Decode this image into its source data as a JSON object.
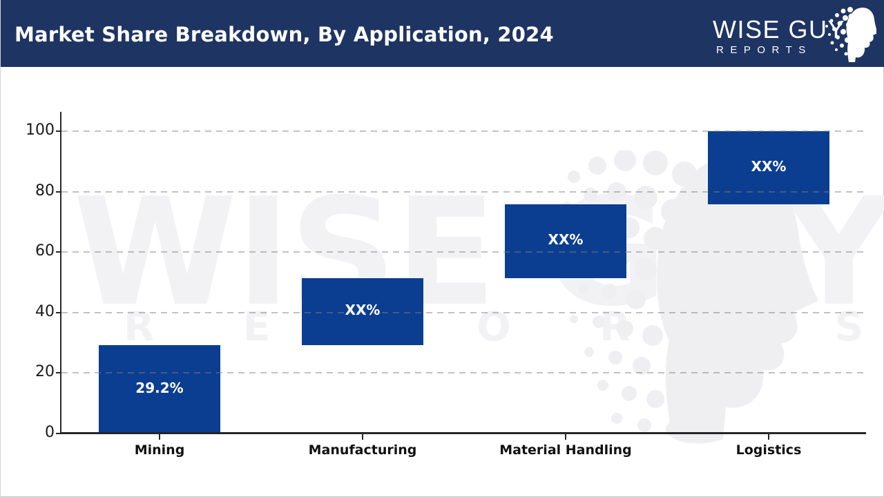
{
  "header": {
    "title": "Market Share Breakdown, By Application, 2024",
    "bg_color": "#1e3462",
    "logo": {
      "name": "WISE GUY",
      "sub": "REPORTS"
    }
  },
  "watermark": {
    "big": "WISE GUY",
    "sub": "R E P O R T S"
  },
  "chart_data": {
    "type": "bar",
    "variant": "waterfall",
    "title": "Market Share Breakdown, By Application, 2024",
    "categories": [
      "Mining",
      "Manufacturing",
      "Material Handling",
      "Logistics"
    ],
    "segments": [
      {
        "category": "Mining",
        "start": 0,
        "end": 29.2,
        "value_label": "29.2%"
      },
      {
        "category": "Manufacturing",
        "start": 29.2,
        "end": 51.4,
        "value_label": "XX%"
      },
      {
        "category": "Material Handling",
        "start": 51.4,
        "end": 75.9,
        "value_label": "XX%"
      },
      {
        "category": "Logistics",
        "start": 75.9,
        "end": 100,
        "value_label": "XX%"
      }
    ],
    "ylabel": "",
    "xlabel": "",
    "y_ticks": [
      0,
      20,
      40,
      60,
      80,
      100
    ],
    "ylim": [
      0,
      106
    ],
    "bar_color": "#0b3e90",
    "bar_label_color": "#ffffff",
    "grid": "horizontal-dashed",
    "legend": "none"
  }
}
